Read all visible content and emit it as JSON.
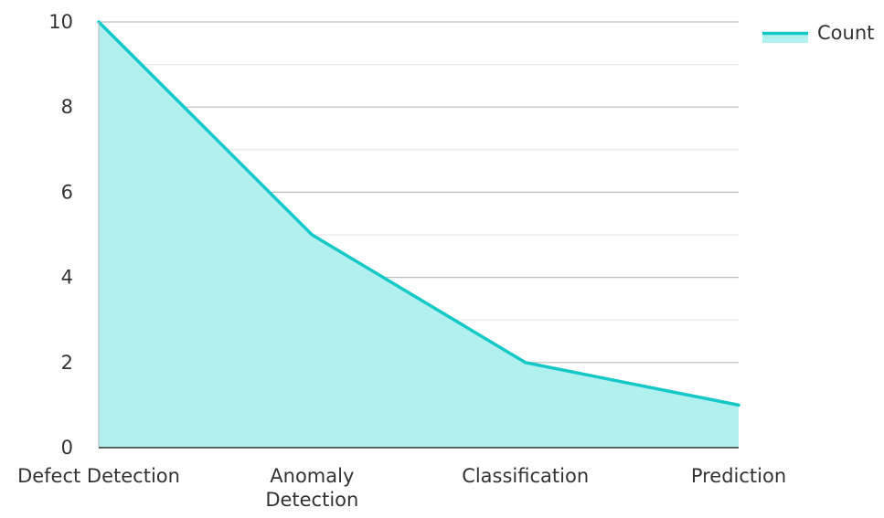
{
  "chart_data": {
    "type": "area",
    "categories": [
      "Defect Detection",
      "Anomaly Detection",
      "Classification",
      "Prediction"
    ],
    "category_lines": [
      [
        "Defect Detection"
      ],
      [
        "Anomaly",
        "Detection"
      ],
      [
        "Classification"
      ],
      [
        "Prediction"
      ]
    ],
    "series": [
      {
        "name": "Count",
        "values": [
          10,
          5,
          2,
          1
        ]
      }
    ],
    "ylim": [
      0,
      10
    ],
    "yticks": [
      "0",
      "2",
      "4",
      "6",
      "8",
      "10"
    ],
    "title": "",
    "xlabel": "",
    "ylabel": "",
    "grid": true,
    "legend": "top-right",
    "colors": {
      "line": "#15c8c8",
      "fill": "#b2efef",
      "grid_major": "#bdbdbd",
      "grid_minor": "#e6e6e6",
      "axis": "#333333"
    }
  }
}
